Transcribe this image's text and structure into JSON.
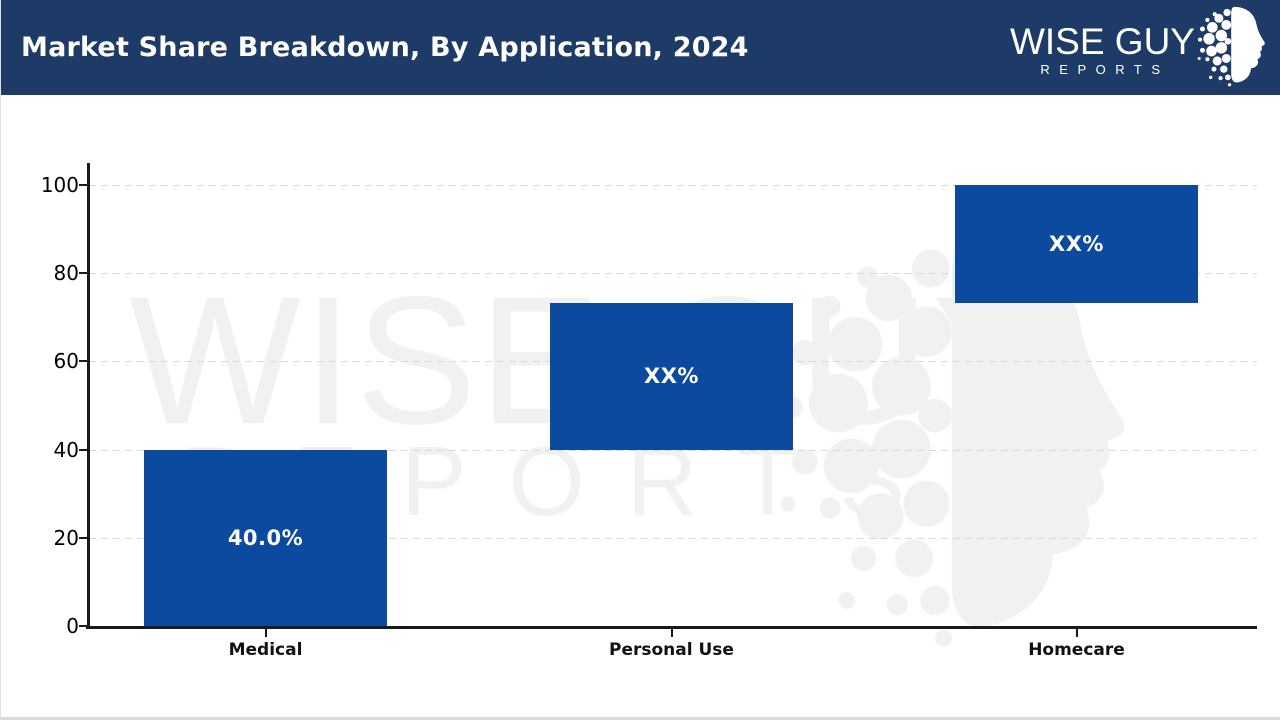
{
  "header": {
    "title": "Market Share Breakdown, By Application, 2024",
    "bg_color": "#1e3a66",
    "text_color": "#ffffff",
    "logo": {
      "wordmark": "WISE GUY",
      "subtext": "REPORTS"
    }
  },
  "watermark": {
    "line1": "WISE GUY",
    "line2": "REPORTS",
    "color": "#f1f1f1"
  },
  "chart_data": {
    "type": "bar",
    "subtype": "floating-waterfall",
    "title": "Market Share Breakdown, By Application, 2024",
    "categories": [
      "Medical",
      "Personal Use",
      "Homecare"
    ],
    "segments": [
      {
        "category": "Medical",
        "start": 0,
        "end": 40,
        "label": "40.0%"
      },
      {
        "category": "Personal Use",
        "start": 40,
        "end": 73.3,
        "label": "XX%"
      },
      {
        "category": "Homecare",
        "start": 73.3,
        "end": 100,
        "label": "XX%"
      }
    ],
    "y_ticks": [
      0,
      20,
      40,
      60,
      80,
      100
    ],
    "ylim": [
      0,
      105
    ],
    "xlabel": "",
    "ylabel": "",
    "grid": "horizontal-dashed",
    "legend": "none",
    "bar_color": "#0b4a9e",
    "bar_label_color": "#ffffff",
    "axis_color": "#1a1a1a",
    "grid_color": "#d9d9d9"
  }
}
